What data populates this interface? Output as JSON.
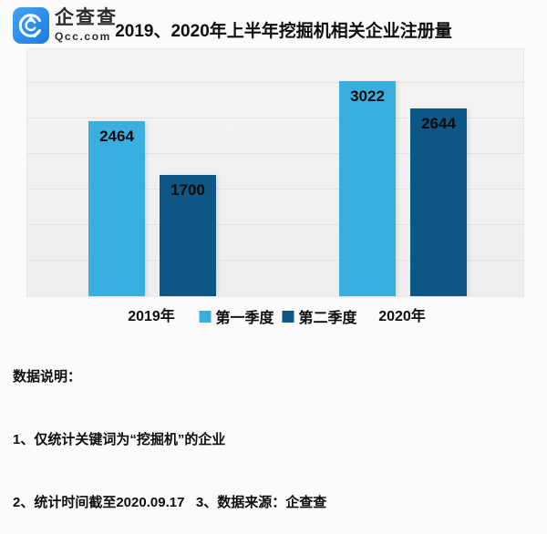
{
  "header": {
    "brand_name": "企查查",
    "brand_domain": "Qcc.com",
    "title": "2019、2020年上半年挖掘机相关企业注册量"
  },
  "chart_data": {
    "type": "bar",
    "title": "2019、2020年上半年挖掘机相关企业注册量",
    "categories": [
      "2019年",
      "2020年"
    ],
    "series": [
      {
        "name": "第一季度",
        "color": "#3BAEE0",
        "values": [
          2464,
          3022
        ]
      },
      {
        "name": "第二季度",
        "color": "#0E5683",
        "values": [
          1700,
          2644
        ]
      }
    ],
    "ylim": [
      0,
      3500
    ],
    "grid_step": 500,
    "grid": "horizontal",
    "legend_position": "bottom-center",
    "value_label_position": "inside-top"
  },
  "notes": {
    "heading": "数据说明：",
    "lines": [
      "1、仅统计关键词为“挖掘机”的企业",
      "2、统计时间截至2020.09.17   3、数据来源：企查查"
    ]
  },
  "colors": {
    "q1_blue": "#3BAEE0",
    "q2_dark_blue": "#0E5683",
    "logo_blue": "#2B8DE9",
    "panel_bg": "#F1F1F2",
    "grid_line": "#E2E2E4"
  }
}
